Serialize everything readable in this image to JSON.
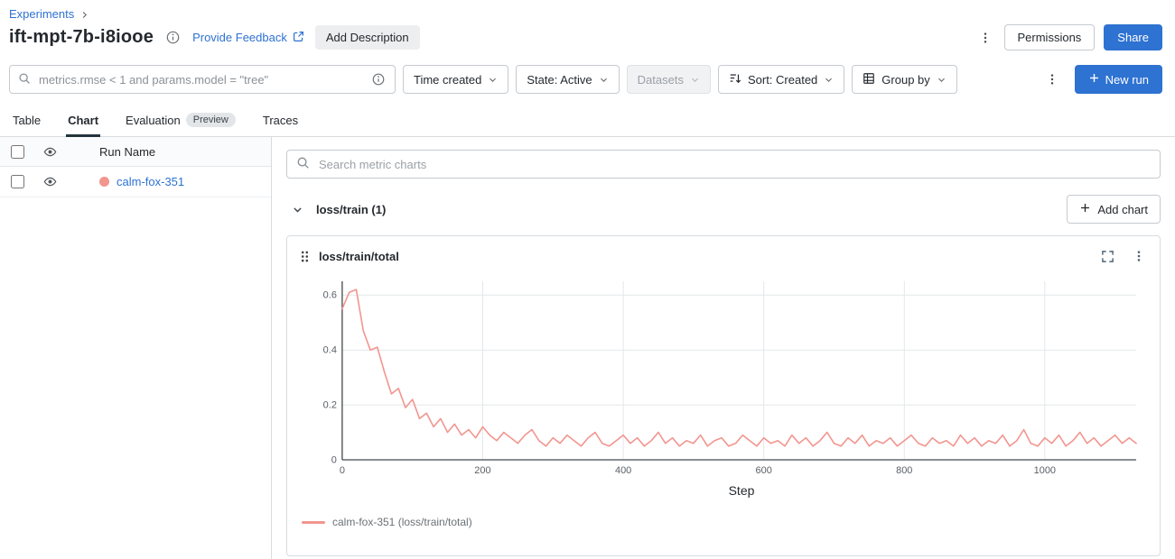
{
  "colors": {
    "accent": "#2e72d2",
    "line": "#f2958f"
  },
  "breadcrumb": {
    "label": "Experiments"
  },
  "header": {
    "title": "ift-mpt-7b-i8iooe",
    "feedback_label": "Provide Feedback",
    "add_description_label": "Add Description",
    "permissions_label": "Permissions",
    "share_label": "Share"
  },
  "toolbar": {
    "search_placeholder": "metrics.rmse < 1 and params.model = \"tree\"",
    "filters": [
      {
        "label": "Time created"
      },
      {
        "label": "State: Active"
      },
      {
        "label": "Datasets"
      },
      {
        "label": "Sort: Created"
      },
      {
        "label": "Group by"
      }
    ],
    "new_run_label": "New run"
  },
  "tabs": [
    {
      "label": "Table"
    },
    {
      "label": "Chart"
    },
    {
      "label": "Evaluation",
      "badge": "Preview"
    },
    {
      "label": "Traces"
    }
  ],
  "run_list": {
    "header": "Run Name",
    "runs": [
      {
        "name": "calm-fox-351",
        "color": "#f2958f"
      }
    ]
  },
  "charts_panel": {
    "search_placeholder": "Search metric charts",
    "section_title": "loss/train (1)",
    "add_chart_label": "Add chart",
    "card_title": "loss/train/total",
    "xlabel": "Step",
    "legend": "calm-fox-351 (loss/train/total)"
  },
  "chart_data": {
    "type": "line",
    "title": "loss/train/total",
    "xlabel": "Step",
    "series_name": "calm-fox-351 (loss/train/total)",
    "color": "#f2958f",
    "xlim": [
      0,
      1130
    ],
    "ylim": [
      0,
      0.65
    ],
    "xticks": [
      0,
      200,
      400,
      600,
      800,
      1000
    ],
    "yticks": [
      0,
      0.2,
      0.4,
      0.6
    ],
    "grid": true,
    "legend_position": "bottom-left",
    "x": [
      0,
      10,
      20,
      30,
      40,
      50,
      60,
      70,
      80,
      90,
      100,
      110,
      120,
      130,
      140,
      150,
      160,
      170,
      180,
      190,
      200,
      210,
      220,
      230,
      240,
      250,
      260,
      270,
      280,
      290,
      300,
      310,
      320,
      330,
      340,
      350,
      360,
      370,
      380,
      390,
      400,
      410,
      420,
      430,
      440,
      450,
      460,
      470,
      480,
      490,
      500,
      510,
      520,
      530,
      540,
      550,
      560,
      570,
      580,
      590,
      600,
      610,
      620,
      630,
      640,
      650,
      660,
      670,
      680,
      690,
      700,
      710,
      720,
      730,
      740,
      750,
      760,
      770,
      780,
      790,
      800,
      810,
      820,
      830,
      840,
      850,
      860,
      870,
      880,
      890,
      900,
      910,
      920,
      930,
      940,
      950,
      960,
      970,
      980,
      990,
      1000,
      1010,
      1020,
      1030,
      1040,
      1050,
      1060,
      1070,
      1080,
      1090,
      1100,
      1110,
      1120,
      1130
    ],
    "y": [
      0.55,
      0.61,
      0.62,
      0.47,
      0.4,
      0.41,
      0.32,
      0.24,
      0.26,
      0.19,
      0.22,
      0.15,
      0.17,
      0.12,
      0.15,
      0.1,
      0.13,
      0.09,
      0.11,
      0.08,
      0.12,
      0.09,
      0.07,
      0.1,
      0.08,
      0.06,
      0.09,
      0.11,
      0.07,
      0.05,
      0.08,
      0.06,
      0.09,
      0.07,
      0.05,
      0.08,
      0.1,
      0.06,
      0.05,
      0.07,
      0.09,
      0.06,
      0.08,
      0.05,
      0.07,
      0.1,
      0.06,
      0.08,
      0.05,
      0.07,
      0.06,
      0.09,
      0.05,
      0.07,
      0.08,
      0.05,
      0.06,
      0.09,
      0.07,
      0.05,
      0.08,
      0.06,
      0.07,
      0.05,
      0.09,
      0.06,
      0.08,
      0.05,
      0.07,
      0.1,
      0.06,
      0.05,
      0.08,
      0.06,
      0.09,
      0.05,
      0.07,
      0.06,
      0.08,
      0.05,
      0.07,
      0.09,
      0.06,
      0.05,
      0.08,
      0.06,
      0.07,
      0.05,
      0.09,
      0.06,
      0.08,
      0.05,
      0.07,
      0.06,
      0.09,
      0.05,
      0.07,
      0.11,
      0.06,
      0.05,
      0.08,
      0.06,
      0.09,
      0.05,
      0.07,
      0.1,
      0.06,
      0.08,
      0.05,
      0.07,
      0.09,
      0.06,
      0.08,
      0.06
    ]
  }
}
